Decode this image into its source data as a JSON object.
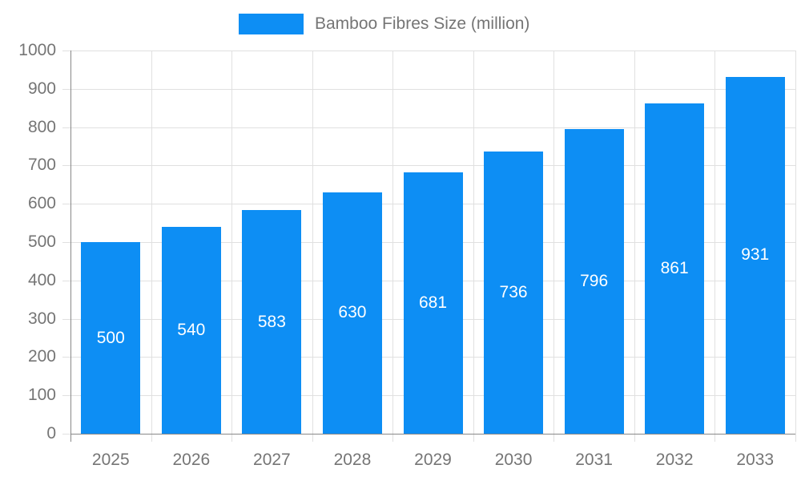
{
  "chart_data": {
    "type": "bar",
    "title": "Bamboo Fibres Size (million)",
    "series": [
      {
        "name": "Bamboo Fibres Size (million)",
        "values": [
          500,
          540,
          583,
          630,
          681,
          736,
          796,
          861,
          931
        ]
      }
    ],
    "categories": [
      "2025",
      "2026",
      "2027",
      "2028",
      "2029",
      "2030",
      "2031",
      "2032",
      "2033"
    ],
    "data_labels": [
      "500",
      "540",
      "583",
      "630",
      "681",
      "736",
      "796",
      "861",
      "931"
    ],
    "xlabel": "",
    "ylabel": "",
    "ylim": [
      0,
      1000
    ],
    "y_tick_step": 100,
    "y_tick_labels": [
      "0",
      "100",
      "200",
      "300",
      "400",
      "500",
      "600",
      "700",
      "800",
      "900",
      "1000"
    ],
    "grid": "horizontal-and-vertical",
    "legend_position": "top-center",
    "data_label_position": "inside-center",
    "colors": {
      "bar": "#0d8ef4",
      "bar_value_text": "#ffffff",
      "axis_text": "#757575",
      "axis_line": "#888888",
      "gridline": "#e0e0e0"
    }
  }
}
